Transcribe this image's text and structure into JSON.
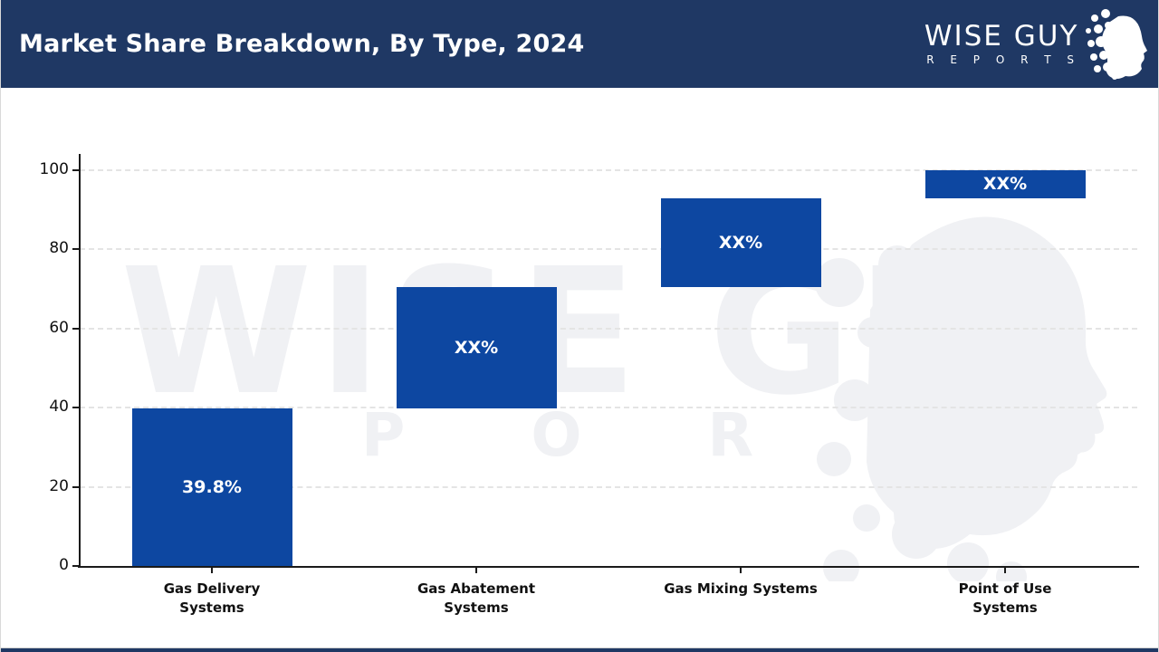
{
  "header": {
    "title": "Market Share Breakdown, By Type, 2024",
    "logo": {
      "line1": "WISE GUY",
      "line2": "R E P O R T S",
      "icon": "dotted-head-profile"
    }
  },
  "watermark": {
    "text_main": "WISE GU",
    "text_sub": "P O R T S",
    "icon": "dotted-head-profile"
  },
  "colors": {
    "header_bg": "#1f3864",
    "footer_bg": "#1f3864",
    "bar": "#0d47a1",
    "bar_label": "#ffffff",
    "grid": "#e4e4e4",
    "axis": "#1a1a1a",
    "watermark": "#f0f1f4"
  },
  "chart_data": {
    "type": "bar",
    "subtype": "waterfall",
    "title": "Market Share Breakdown, By Type, 2024",
    "xlabel": "",
    "ylabel": "",
    "grid": "horizontal-dashed",
    "legend": "none",
    "ylim": [
      0,
      105
    ],
    "yticks": [
      0,
      20,
      40,
      60,
      80,
      100
    ],
    "categories": [
      [
        "Gas Delivery",
        "Systems"
      ],
      [
        "Gas Abatement",
        "Systems"
      ],
      [
        "Gas Mixing Systems"
      ],
      [
        "Point of Use",
        "Systems"
      ]
    ],
    "segments": [
      {
        "start": 0,
        "end": 39.8,
        "value": 39.8,
        "label": "39.8%"
      },
      {
        "start": 39.8,
        "end": 70.3,
        "value": 30.5,
        "label": "XX%"
      },
      {
        "start": 70.3,
        "end": 92.8,
        "value": 22.5,
        "label": "XX%"
      },
      {
        "start": 92.8,
        "end": 100,
        "value": 7.2,
        "label": "XX%"
      }
    ]
  }
}
